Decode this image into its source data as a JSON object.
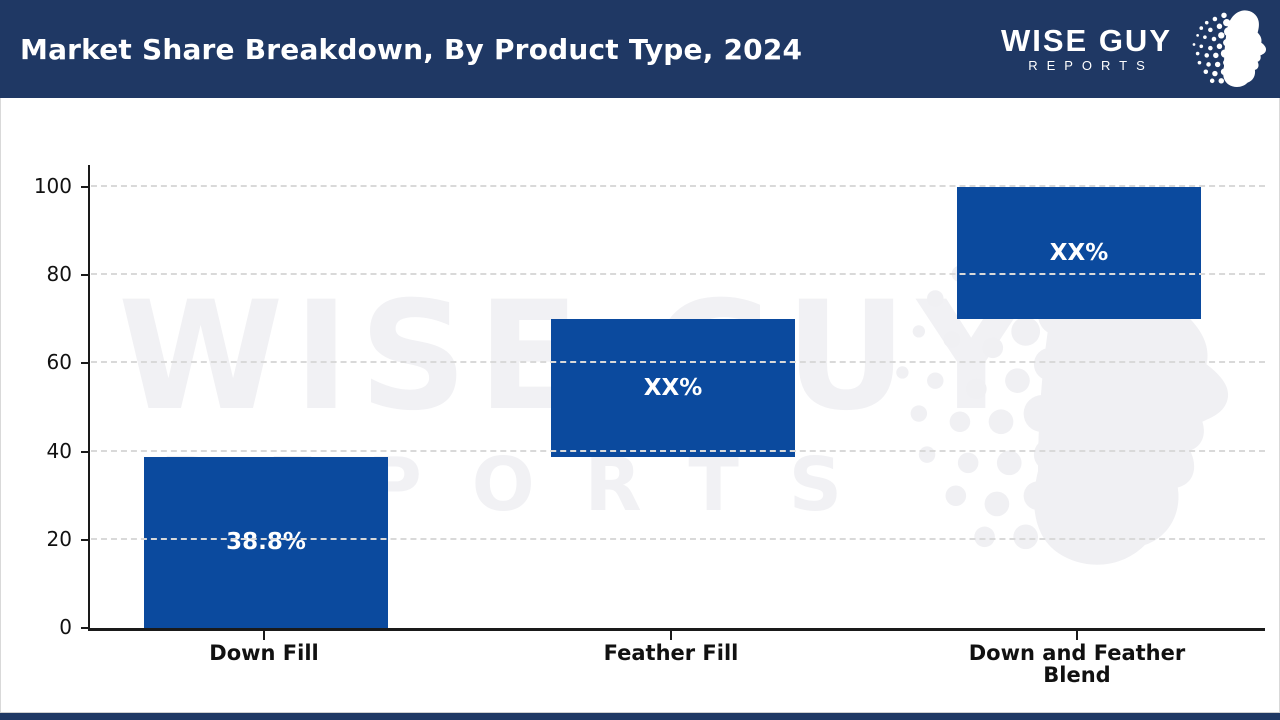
{
  "header": {
    "title": "Market Share Breakdown, By Product Type, 2024",
    "logo": {
      "name": "WISE GUY",
      "sub": "REPORTS"
    }
  },
  "watermark": {
    "line1": "WISE GUY",
    "line2": "REPORTS"
  },
  "chart_data": {
    "type": "bar",
    "subtype": "floating-segment-waterfall",
    "title": "Market Share Breakdown, By Product Type, 2024",
    "categories": [
      "Down Fill",
      "Feather Fill",
      "Down and Feather Blend"
    ],
    "segments": [
      {
        "category": "Down Fill",
        "start": 0,
        "end": 38.8,
        "label": "38.8%"
      },
      {
        "category": "Feather Fill",
        "start": 38.8,
        "end": 70,
        "label": "XX%"
      },
      {
        "category": "Down and Feather Blend",
        "start": 70,
        "end": 100,
        "label": "XX%"
      }
    ],
    "y_ticks": [
      0,
      20,
      40,
      60,
      80,
      100
    ],
    "ylim": [
      0,
      100
    ],
    "grid": "dashed-horizontal",
    "legend": "none",
    "bar_color": "#0b4a9e"
  },
  "colors": {
    "header_bg": "#1f3864",
    "bar": "#0b4a9e",
    "grid": "#d9d9d9",
    "axis": "#1a1a1a",
    "watermark": "#f1f1f4"
  }
}
